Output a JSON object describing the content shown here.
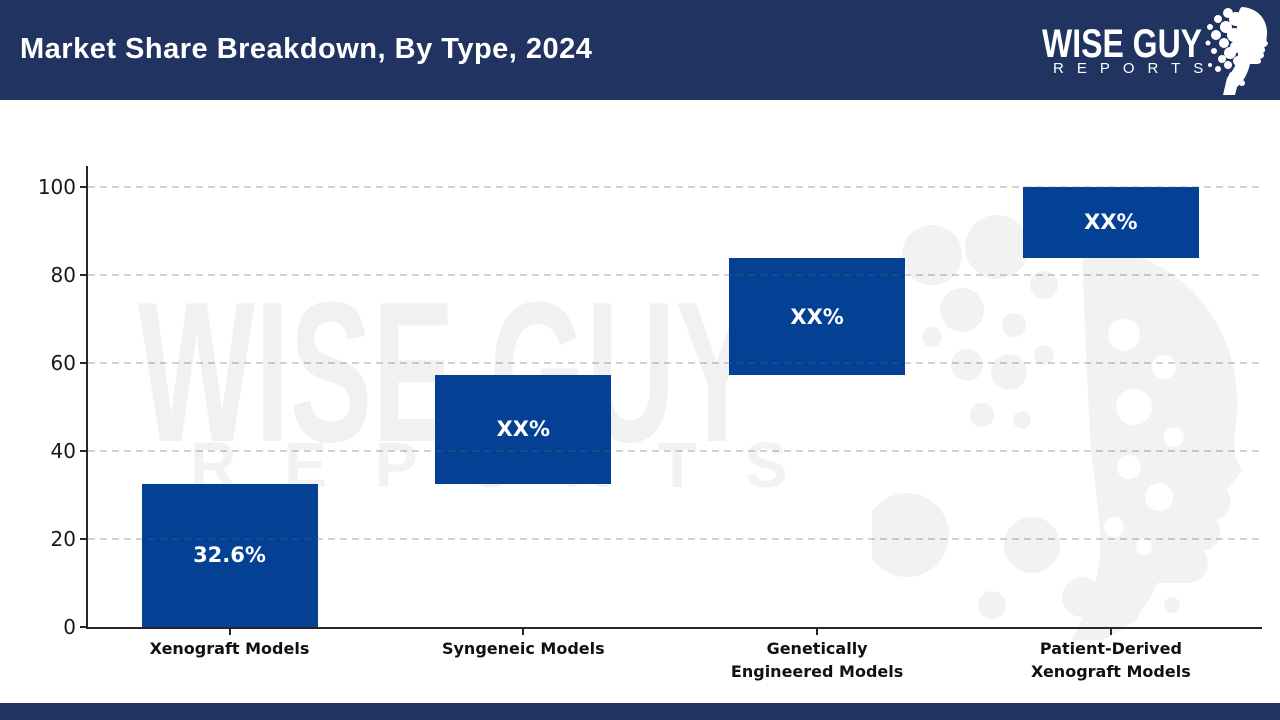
{
  "header": {
    "title": "Market Share Breakdown, By Type, 2024",
    "bg_color": "#213360",
    "logo": {
      "line1": "WISE GUY",
      "line2": "REPORTS"
    }
  },
  "watermark": {
    "line1": "WISE GUY",
    "line2": "REPORTS"
  },
  "footer": {
    "bg_color": "#213360"
  },
  "chart_data": {
    "type": "bar",
    "subtype": "floating-waterfall",
    "title": "Market Share Breakdown, By Type, 2024",
    "categories": [
      "Xenograft Models",
      "Syngeneic Models",
      "Genetically Engineered Models",
      "Patient-Derived Xenograft Models"
    ],
    "category_lines": [
      "Xenograft Models",
      "Syngeneic Models",
      "Genetically\nEngineered Models",
      "Patient-Derived\nXenograft Models"
    ],
    "segments": [
      {
        "category": "Xenograft Models",
        "start": 0,
        "end": 32.6,
        "label": "32.6%"
      },
      {
        "category": "Syngeneic Models",
        "start": 32.6,
        "end": 57.2,
        "label": "XX%"
      },
      {
        "category": "Genetically Engineered Models",
        "start": 57.2,
        "end": 83.9,
        "label": "XX%"
      },
      {
        "category": "Patient-Derived Xenograft Models",
        "start": 83.9,
        "end": 100,
        "label": "XX%"
      }
    ],
    "displayed_labels": [
      "32.6%",
      "XX%",
      "XX%",
      "XX%"
    ],
    "ylim": [
      0,
      100
    ],
    "yticks": [
      0,
      20,
      40,
      60,
      80,
      100
    ],
    "grid": true,
    "grid_style": "dashed",
    "legend": false,
    "bar_color": "#044194",
    "value_label_color": "#ffffff",
    "axis_color": "#262626"
  }
}
